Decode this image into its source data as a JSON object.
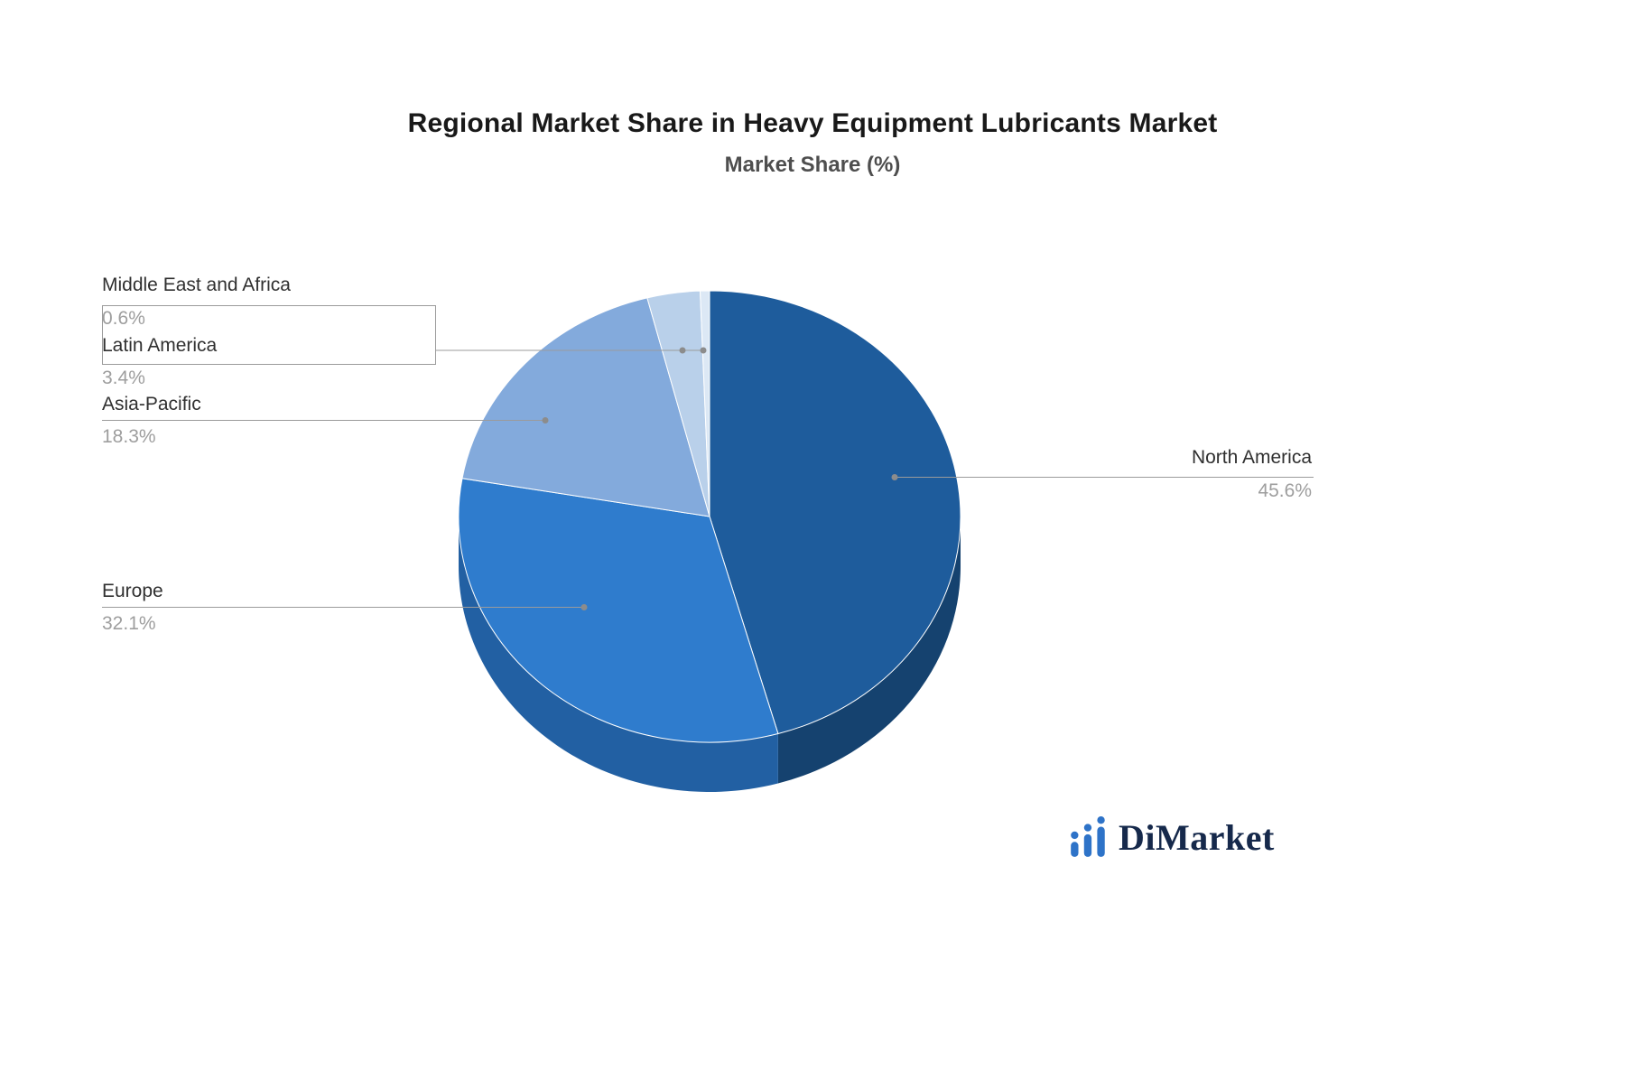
{
  "chart_data": {
    "type": "pie",
    "title": "Regional Market Share in Heavy Equipment Lubricants Market",
    "subtitle": "Market Share (%)",
    "unit": "%",
    "direction": "clockwise",
    "start_angle_deg": 0,
    "style_3d": true,
    "legend": "none",
    "label_style": "outside-leader-lines",
    "slices": [
      {
        "label": "North America",
        "value": 45.6,
        "display": "45.6%",
        "color": "#1e5c9c",
        "side_color": "#15426f"
      },
      {
        "label": "Europe",
        "value": 32.1,
        "display": "32.1%",
        "color": "#2f7ccd",
        "side_color": "#2260a3"
      },
      {
        "label": "Asia-Pacific",
        "value": 18.3,
        "display": "18.3%",
        "color": "#83aadc",
        "side_color": "#627fa6"
      },
      {
        "label": "Latin America",
        "value": 3.4,
        "display": "3.4%",
        "color": "#b9d0ea",
        "side_color": "#93aecb"
      },
      {
        "label": "Middle East and Africa",
        "value": 0.6,
        "display": "0.6%",
        "color": "#dce8f5",
        "side_color": "#b6c6d8"
      }
    ]
  },
  "branding": {
    "logo_text": "DiMarket",
    "logo_color": "#16294b",
    "icon_name": "bar-chart-icon",
    "icon_color": "#2e73c8"
  },
  "colors": {
    "connector": "#9b9b9b",
    "connector_dot": "#8c8c8c",
    "label_name": "#303030",
    "label_value": "#9e9e9e"
  }
}
